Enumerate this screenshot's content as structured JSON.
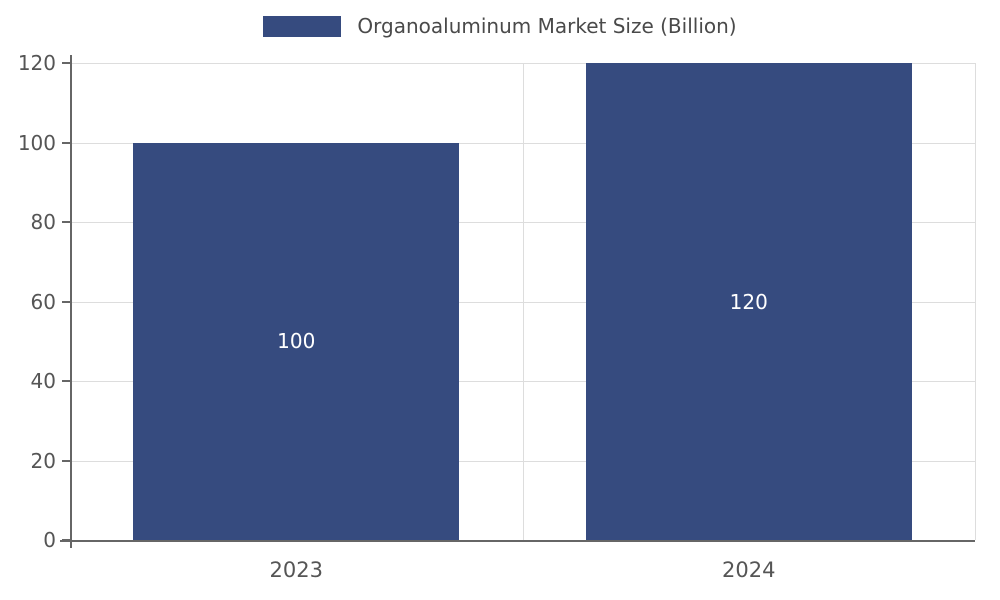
{
  "legend": {
    "label": "Organoaluminum Market Size (Billion)"
  },
  "colors": {
    "bar": "#364b7f",
    "grid": "#dddddd",
    "axis": "#666666",
    "tick_text": "#555555",
    "legend_text": "#4a4a4a",
    "value_text": "#ffffff",
    "background": "#ffffff"
  },
  "chart_data": {
    "type": "bar",
    "title": "Organoaluminum Market Size (Billion)",
    "categories": [
      "2023",
      "2024"
    ],
    "values": [
      100,
      120
    ],
    "bar_value_labels": [
      "100",
      "120"
    ],
    "xlabel": "",
    "ylabel": "",
    "ylim": [
      0,
      120
    ],
    "yticks": [
      0,
      20,
      40,
      60,
      80,
      100,
      120
    ],
    "grid": true,
    "legend_position": "top-center"
  }
}
